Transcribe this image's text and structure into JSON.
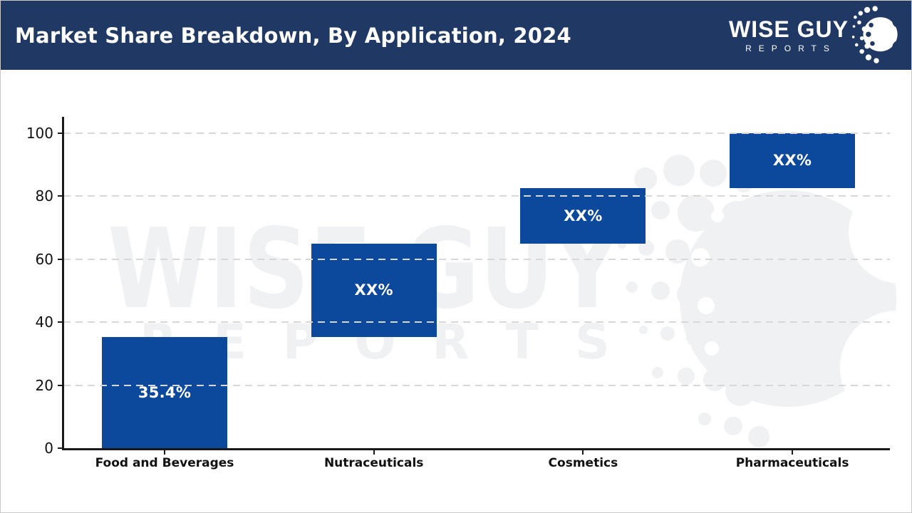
{
  "header": {
    "title": "Market Share Breakdown, By Application, 2024",
    "logo_line1": "WISE GUY",
    "logo_line2": "REPORTS"
  },
  "watermark": {
    "line1": "WISE GUY",
    "line2": "R E P O R T S"
  },
  "chart_data": {
    "type": "bar",
    "subtype": "floating-stacked-percentage",
    "title": "Market Share Breakdown, By Application, 2024",
    "categories": [
      "Food and Beverages",
      "Nutraceuticals",
      "Cosmetics",
      "Pharmaceuticals"
    ],
    "bars": [
      {
        "category": "Food and Beverages",
        "from": 0,
        "to": 35.4,
        "label": "35.4%"
      },
      {
        "category": "Nutraceuticals",
        "from": 35.4,
        "to": 65.0,
        "label": "XX%"
      },
      {
        "category": "Cosmetics",
        "from": 65.0,
        "to": 82.6,
        "label": "XX%"
      },
      {
        "category": "Pharmaceuticals",
        "from": 82.6,
        "to": 100,
        "label": "XX%"
      }
    ],
    "xlabel": "",
    "ylabel": "",
    "ylim": [
      0,
      100
    ],
    "yticks": [
      0,
      20,
      40,
      60,
      80,
      100
    ],
    "grid": "horizontal-dashed",
    "legend": "none",
    "colors": {
      "bar": "#0C499C",
      "bar_label": "#FFFFFF",
      "grid": "#D8D8D8",
      "axis": "#1A1A1A",
      "header_bg": "#1F3864",
      "watermark": "#F0F1F3"
    }
  }
}
